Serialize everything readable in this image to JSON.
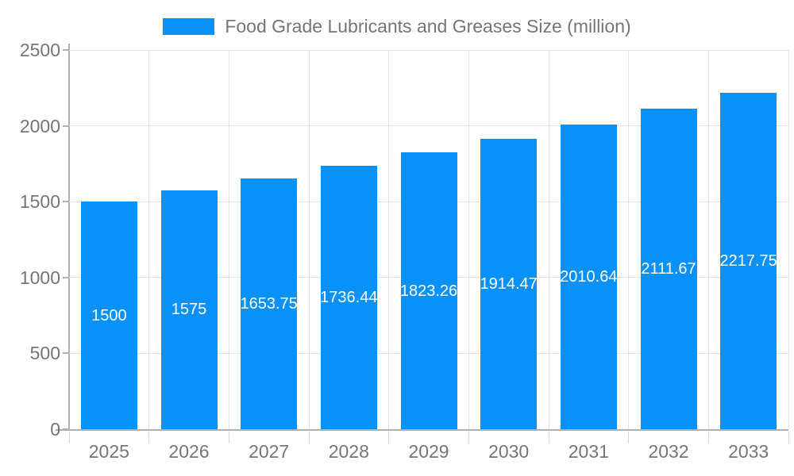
{
  "legend": {
    "swatch_color": "#0991fa"
  },
  "chart_data": {
    "type": "bar",
    "title": "Food Grade Lubricants and Greases Size (million)",
    "categories": [
      "2025",
      "2026",
      "2027",
      "2028",
      "2029",
      "2030",
      "2031",
      "2032",
      "2033"
    ],
    "values": [
      1500,
      1575,
      1653.75,
      1736.44,
      1823.26,
      1914.47,
      2010.64,
      2111.67,
      2217.75
    ],
    "value_labels": [
      "1500",
      "1575",
      "1653.75",
      "1736.44",
      "1823.26",
      "1914.47",
      "2010.64",
      "2111.67",
      "2217.75"
    ],
    "xlabel": "",
    "ylabel": "",
    "ylim": [
      0,
      2500
    ],
    "yticks": [
      0,
      500,
      1000,
      1500,
      2000,
      2500
    ],
    "ytick_labels": [
      "0",
      "500",
      "1000",
      "1500",
      "2000",
      "2500"
    ],
    "grid": true,
    "legend_position": "top",
    "colors": {
      "bar": "#0991fa",
      "value_label": "#ffffff",
      "axis_text": "#757575",
      "gridline": "#e3e3e3",
      "axis_line": "#b0b0b0",
      "background": "#ffffff"
    }
  }
}
